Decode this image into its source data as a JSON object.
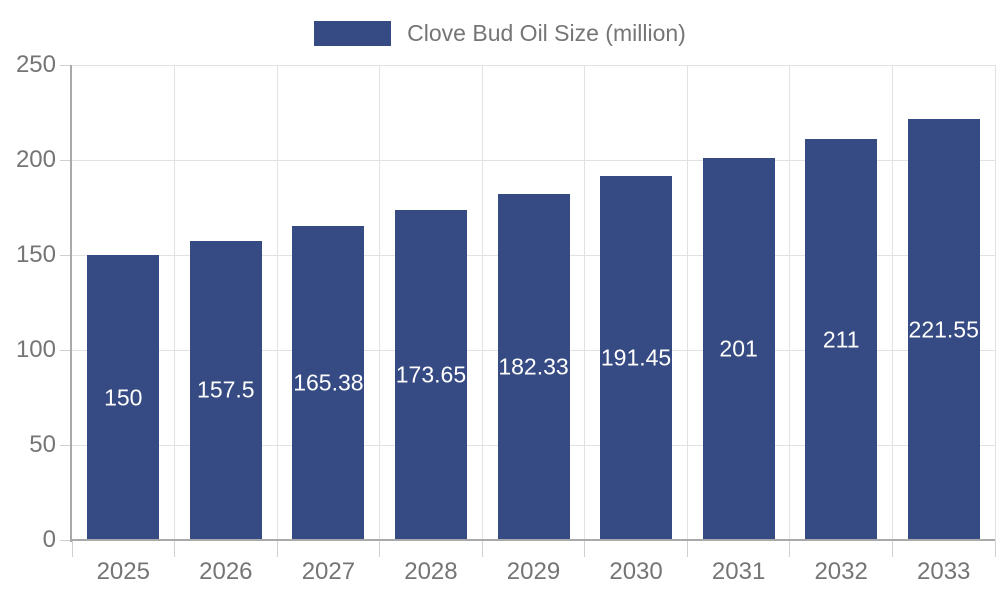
{
  "chart_data": {
    "type": "bar",
    "title": "Clove Bud Oil Size (million)",
    "legend": [
      "Clove Bud Oil Size (million)"
    ],
    "legend_position": "top-center",
    "categories": [
      "2025",
      "2026",
      "2027",
      "2028",
      "2029",
      "2030",
      "2031",
      "2032",
      "2033"
    ],
    "series": [
      {
        "name": "Clove Bud Oil Size (million)",
        "values": [
          150,
          157.5,
          165.38,
          173.65,
          182.33,
          191.45,
          201,
          211,
          221.55
        ],
        "value_labels": [
          "150",
          "157.5",
          "165.38",
          "173.65",
          "182.33",
          "191.45",
          "201",
          "211",
          "221.55"
        ]
      }
    ],
    "xlabel": "",
    "ylabel": "",
    "ylim": [
      0,
      250
    ],
    "yticks": [
      0,
      50,
      100,
      150,
      200,
      250
    ],
    "grid": true,
    "colors": {
      "bar": "#364a83",
      "axis_text": "#757575",
      "value_text": "#ffffff",
      "grid_line": "#e2e2e2",
      "axis_line": "#a9a9a9",
      "tick": "#d0d0d0",
      "background": "#ffffff"
    }
  }
}
